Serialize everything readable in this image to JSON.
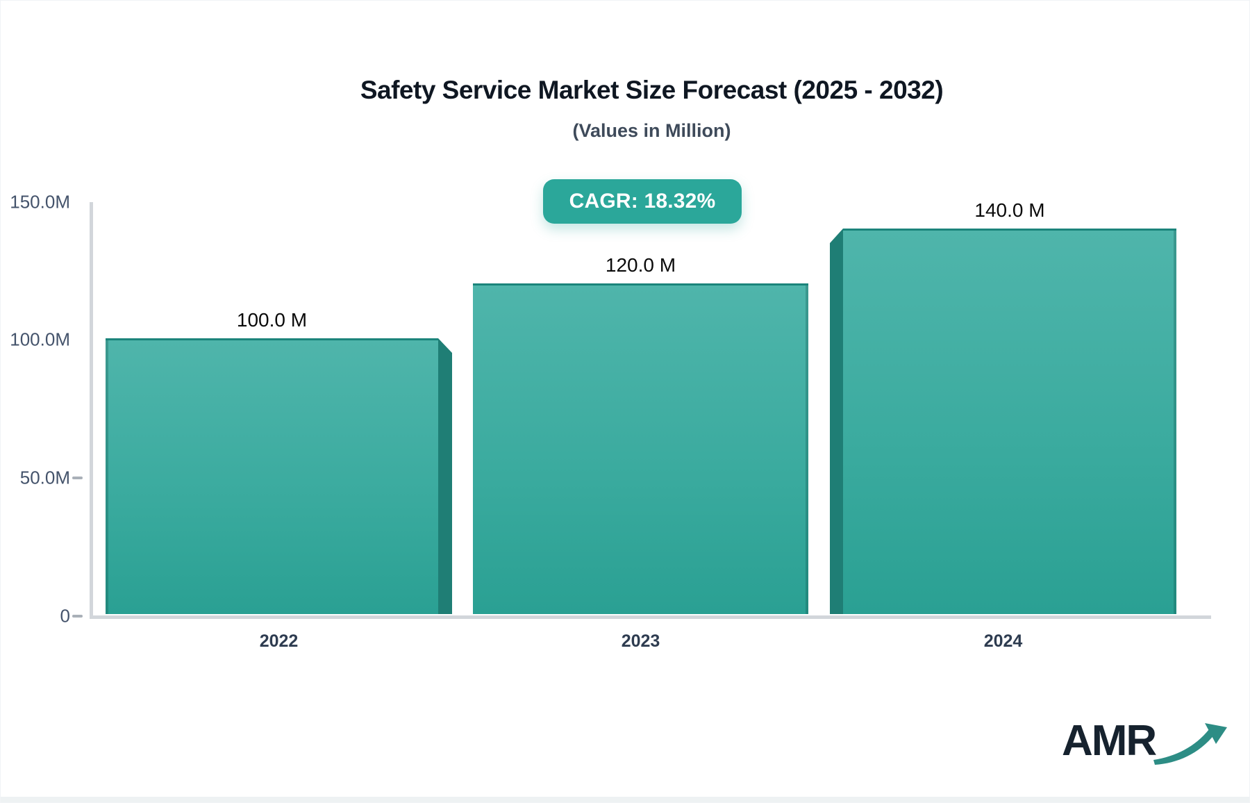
{
  "header": {
    "title": "Safety Service Market Size Forecast (2025 - 2032)",
    "subtitle": "(Values in Million)"
  },
  "badge": {
    "label": "CAGR: 18.32%"
  },
  "chart_data": {
    "type": "bar",
    "title": "Safety Service Market Size Forecast (2025 - 2032)",
    "subtitle": "(Values in Million)",
    "cagr_percent": 18.32,
    "categories": [
      "2022",
      "2023",
      "2024"
    ],
    "values": [
      100,
      120,
      140
    ],
    "bar_labels": [
      "100.0 M",
      "120.0 M",
      "140.0 M"
    ],
    "unit": "Million",
    "xlabel": "",
    "ylabel": "",
    "ylim": [
      0,
      150
    ],
    "yticks": [
      {
        "value": 150,
        "label": "150.0M"
      },
      {
        "value": 100,
        "label": "100.0M"
      },
      {
        "value": 50,
        "label": "50.0M"
      },
      {
        "value": 0,
        "label": "0"
      }
    ],
    "grid": false,
    "legend": false,
    "bar_color_top": "#4fb5ab",
    "bar_color_bottom": "#2aa093",
    "bar_bevel_color": "#1f7e75",
    "badge_color": "#2ba79a",
    "axis_color": "#d2d6db"
  },
  "logo": {
    "text": "AMR"
  }
}
